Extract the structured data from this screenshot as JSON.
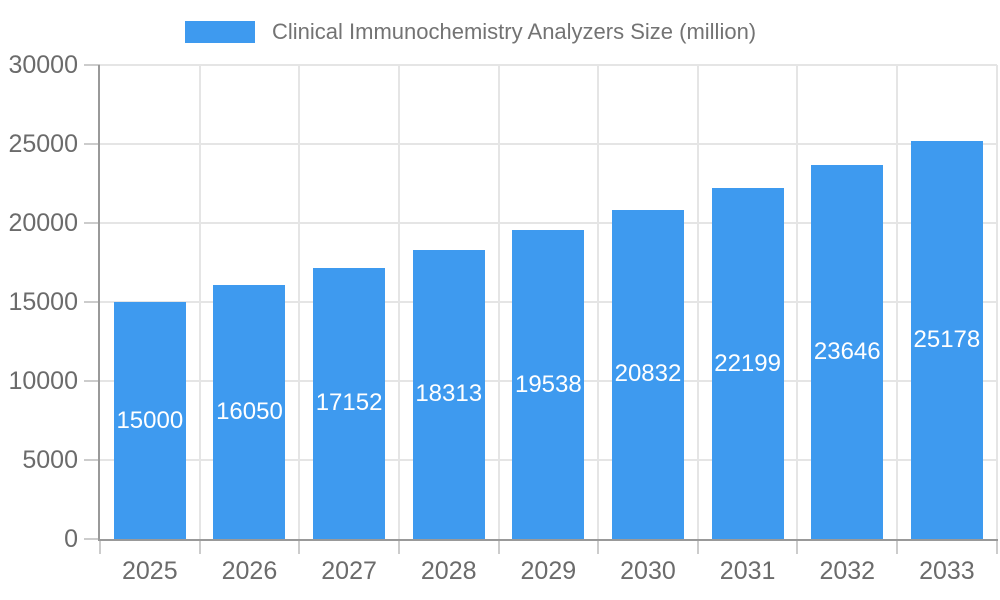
{
  "chart_data": {
    "type": "bar",
    "title": "Clinical Immunochemistry Analyzers Size (million)",
    "categories": [
      "2025",
      "2026",
      "2027",
      "2028",
      "2029",
      "2030",
      "2031",
      "2032",
      "2033"
    ],
    "series": [
      {
        "name": "Clinical Immunochemistry Analyzers Size (million)",
        "values": [
          15000,
          16050,
          17152,
          18313,
          19538,
          20832,
          22199,
          23646,
          25178
        ],
        "color": "#3E9AEF"
      }
    ],
    "data_labels": {
      "show": true,
      "position": "center",
      "color": "#ffffff"
    },
    "xlabel": "",
    "ylabel": "",
    "ylim": [
      0,
      30000
    ],
    "yticks": [
      0,
      5000,
      10000,
      15000,
      20000,
      25000,
      30000
    ],
    "grid": true,
    "legend_position": "top"
  },
  "colors": {
    "accent": "#3E9AEF",
    "grid": "#e5e5e5",
    "axis": "#999999",
    "tick_mark": "#cccccc",
    "tick_text": "#6b6b6b",
    "legend_text": "#737373",
    "bar_label_text": "#ffffff",
    "background": "#ffffff"
  }
}
